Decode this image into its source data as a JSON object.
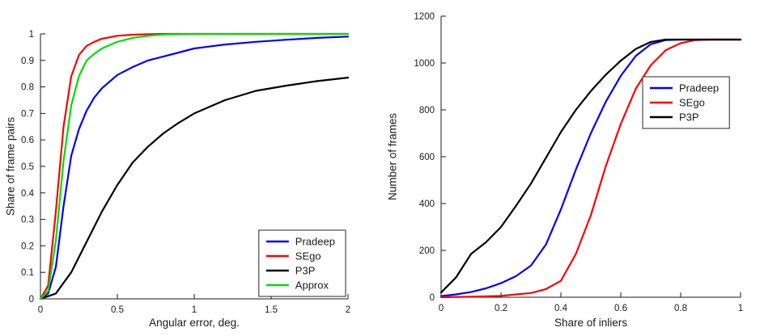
{
  "figure": {
    "background": "#ffffff",
    "axis_color": "#1a1a1a"
  },
  "chart_data": [
    {
      "type": "line",
      "title": "",
      "xlabel": "Angular error, deg.",
      "ylabel": "Share of frame pairs",
      "xlim": [
        0,
        2
      ],
      "ylim": [
        0,
        1
      ],
      "grid": false,
      "legend_position": "southeast",
      "xticks": {
        "values": [
          0,
          0.5,
          1,
          1.5,
          2
        ],
        "labels": [
          "0",
          "0.5",
          "1",
          "1.5",
          "2"
        ]
      },
      "yticks": {
        "values": [
          0,
          0.1,
          0.2,
          0.3,
          0.4,
          0.5,
          0.6,
          0.7,
          0.8,
          0.9,
          1
        ],
        "labels": [
          "0",
          "0.1",
          "0.2",
          "0.3",
          "0.4",
          "0.5",
          "0.6",
          "0.7",
          "0.8",
          "0.9",
          "1"
        ]
      },
      "series": [
        {
          "name": "Pradeep",
          "color": "#0000ff",
          "x": [
            0,
            0.05,
            0.1,
            0.15,
            0.2,
            0.25,
            0.3,
            0.35,
            0.4,
            0.45,
            0.5,
            0.6,
            0.7,
            0.8,
            0.9,
            1.0,
            1.2,
            1.4,
            1.6,
            1.8,
            2.0
          ],
          "y": [
            0,
            0.02,
            0.12,
            0.35,
            0.54,
            0.64,
            0.71,
            0.76,
            0.795,
            0.82,
            0.845,
            0.875,
            0.9,
            0.915,
            0.93,
            0.945,
            0.96,
            0.97,
            0.978,
            0.985,
            0.99
          ]
        },
        {
          "name": "SEgo",
          "color": "#ff0000",
          "x": [
            0,
            0.05,
            0.1,
            0.15,
            0.2,
            0.25,
            0.3,
            0.35,
            0.4,
            0.5,
            0.6,
            0.7,
            0.8,
            1.0,
            1.5,
            2.0
          ],
          "y": [
            0,
            0.05,
            0.33,
            0.65,
            0.84,
            0.92,
            0.955,
            0.97,
            0.982,
            0.993,
            0.997,
            0.999,
            1.0,
            1.0,
            1.0,
            1.0
          ]
        },
        {
          "name": "P3P",
          "color": "#000000",
          "x": [
            0,
            0.1,
            0.2,
            0.3,
            0.4,
            0.5,
            0.6,
            0.7,
            0.8,
            0.9,
            1.0,
            1.2,
            1.4,
            1.6,
            1.8,
            2.0
          ],
          "y": [
            0,
            0.02,
            0.1,
            0.215,
            0.33,
            0.43,
            0.515,
            0.575,
            0.625,
            0.665,
            0.7,
            0.75,
            0.785,
            0.805,
            0.822,
            0.835
          ]
        },
        {
          "name": "Approx",
          "color": "#00dd00",
          "x": [
            0,
            0.05,
            0.1,
            0.15,
            0.2,
            0.25,
            0.3,
            0.35,
            0.4,
            0.5,
            0.6,
            0.7,
            0.8,
            1.0,
            1.5,
            2.0
          ],
          "y": [
            0,
            0.03,
            0.22,
            0.52,
            0.73,
            0.84,
            0.9,
            0.925,
            0.945,
            0.97,
            0.985,
            0.993,
            0.998,
            1.0,
            1.0,
            1.0
          ]
        }
      ]
    },
    {
      "type": "line",
      "title": "",
      "xlabel": "Share of inliers",
      "ylabel": "Number of frames",
      "xlim": [
        0,
        1
      ],
      "ylim": [
        0,
        1200
      ],
      "grid": false,
      "legend_position": "east",
      "xticks": {
        "values": [
          0,
          0.2,
          0.4,
          0.6,
          0.8,
          1
        ],
        "labels": [
          "0",
          "0.2",
          "0.4",
          "0.6",
          "0.8",
          "1"
        ]
      },
      "yticks": {
        "values": [
          0,
          200,
          400,
          600,
          800,
          1000,
          1200
        ],
        "labels": [
          "0",
          "200",
          "400",
          "600",
          "800",
          "1000",
          "1200"
        ]
      },
      "series": [
        {
          "name": "Pradeep",
          "color": "#0000ff",
          "x": [
            0,
            0.05,
            0.1,
            0.15,
            0.2,
            0.25,
            0.3,
            0.35,
            0.4,
            0.45,
            0.5,
            0.55,
            0.6,
            0.65,
            0.7,
            0.75,
            0.8,
            0.9,
            1.0
          ],
          "y": [
            5,
            12,
            22,
            38,
            60,
            90,
            135,
            225,
            375,
            545,
            700,
            835,
            945,
            1030,
            1080,
            1098,
            1100,
            1100,
            1100
          ]
        },
        {
          "name": "SEgo",
          "color": "#ff0000",
          "x": [
            0,
            0.1,
            0.2,
            0.3,
            0.35,
            0.4,
            0.45,
            0.5,
            0.55,
            0.6,
            0.65,
            0.7,
            0.75,
            0.8,
            0.85,
            0.9,
            1.0
          ],
          "y": [
            0,
            2,
            6,
            18,
            35,
            70,
            185,
            350,
            560,
            740,
            890,
            990,
            1055,
            1085,
            1098,
            1100,
            1100
          ]
        },
        {
          "name": "P3P",
          "color": "#000000",
          "x": [
            0,
            0.05,
            0.1,
            0.15,
            0.2,
            0.25,
            0.3,
            0.35,
            0.4,
            0.45,
            0.5,
            0.55,
            0.6,
            0.65,
            0.7,
            0.75,
            0.8,
            1.0
          ],
          "y": [
            20,
            85,
            185,
            235,
            300,
            390,
            485,
            595,
            705,
            800,
            880,
            950,
            1010,
            1060,
            1090,
            1100,
            1100,
            1100
          ]
        }
      ]
    }
  ]
}
